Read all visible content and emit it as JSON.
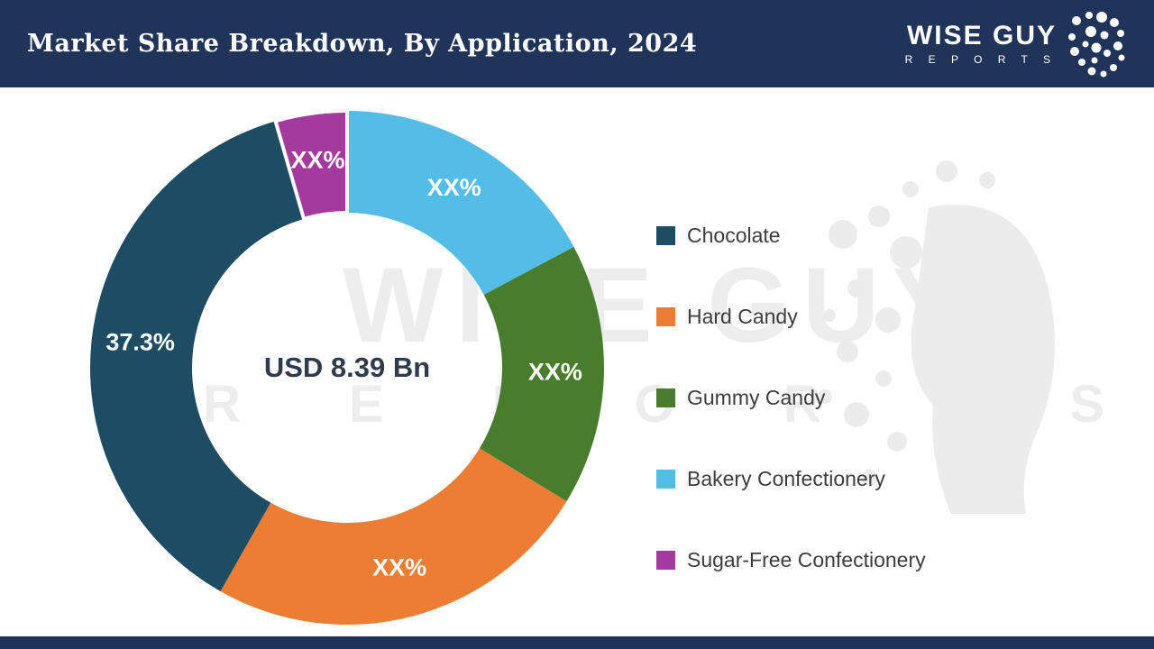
{
  "header": {
    "title": "Market Share Breakdown, By Application, 2024",
    "logo": {
      "line1": "WISE GUY",
      "line2": "R E P O R T S"
    }
  },
  "watermark": {
    "line1": "WISE GUY",
    "line2": "R E P O R T S"
  },
  "chart_data": {
    "type": "pie",
    "subtype": "donut",
    "title": "Market Share Breakdown, By Application, 2024",
    "center_text": "USD 8.39 Bn",
    "legend_position": "right",
    "segments": [
      {
        "name": "Chocolate",
        "color": "#1d4c63",
        "label": "37.3%",
        "value": 37.3,
        "outlined": false
      },
      {
        "name": "Hard Candy",
        "color": "#ec7d33",
        "label": "XX%",
        "value": 24.5,
        "outlined": false
      },
      {
        "name": "Gummy Candy",
        "color": "#497d2e",
        "label": "XX%",
        "value": 16.5,
        "outlined": false
      },
      {
        "name": "Bakery Confectionery",
        "color": "#53bde8",
        "label": "XX%",
        "value": 17.2,
        "outlined": false
      },
      {
        "name": "Sugar-Free Confectionery",
        "color": "#a53a9e",
        "label": "XX%",
        "value": 4.5,
        "outlined": true
      }
    ],
    "draw_order": [
      3,
      2,
      1,
      0,
      4
    ],
    "start_angle_deg": 0
  }
}
